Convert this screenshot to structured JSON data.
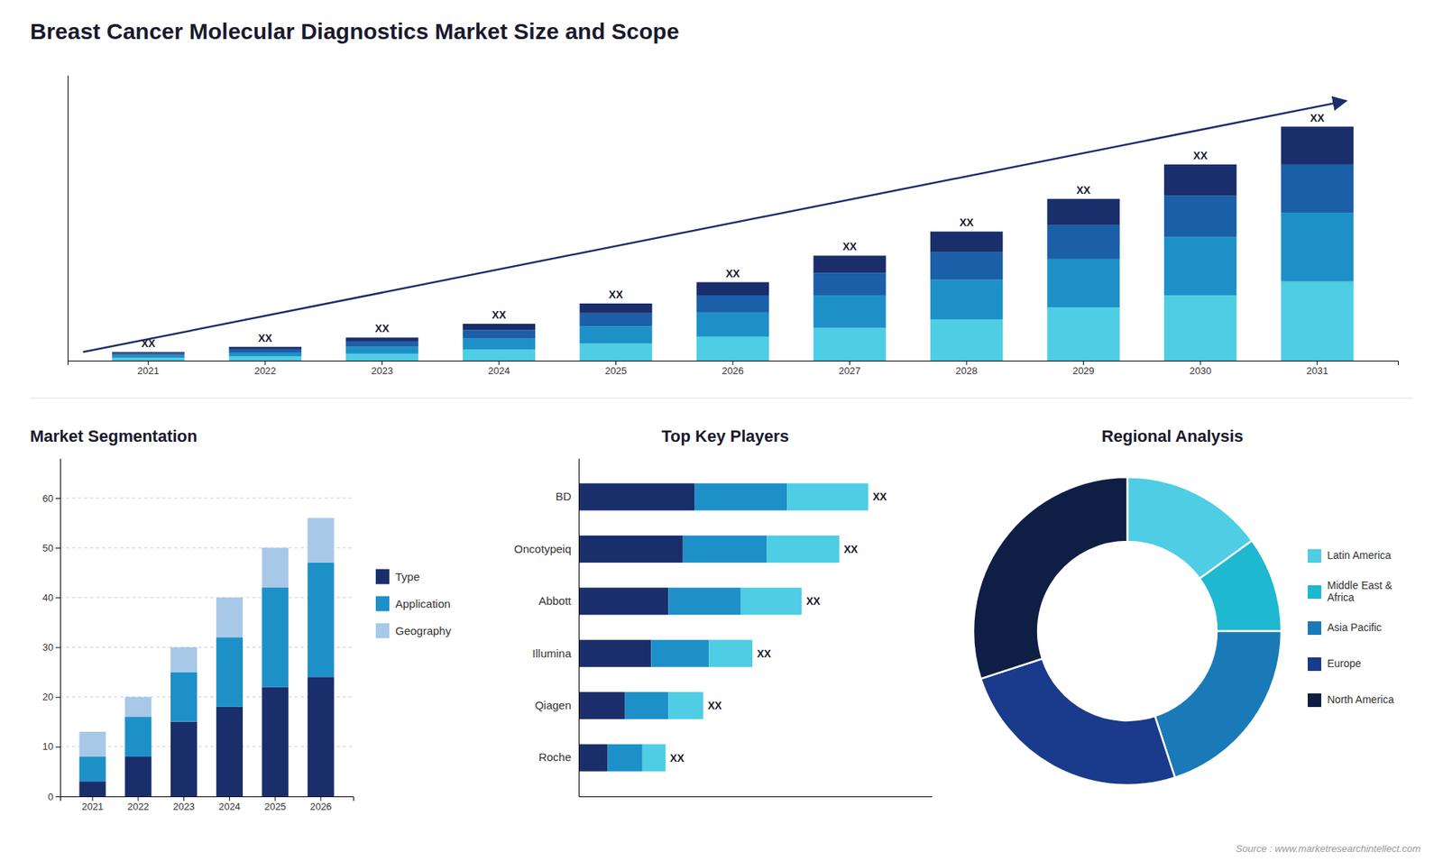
{
  "title": "Breast Cancer Molecular Diagnostics Market Size and Scope",
  "annotations": [
    "Source : www.marketresearchintellect.com"
  ],
  "chart_data": [
    {
      "type": "bar",
      "stacked": true,
      "tick_labels": "x",
      "categories": [
        "2021",
        "2022",
        "2023",
        "2024",
        "2025",
        "2026",
        "2027",
        "2028",
        "2029",
        "2030",
        "2031"
      ],
      "series": [
        {
          "color": "#4ecde4",
          "values": [
            0.8,
            1.2,
            2.0,
            3.2,
            5.0,
            7.0,
            9.5,
            12.0,
            15.5,
            19.0,
            23.0
          ]
        },
        {
          "color": "#1e90c8",
          "values": [
            0.8,
            1.2,
            2.0,
            3.2,
            5.0,
            7.0,
            9.5,
            11.5,
            14.0,
            17.0,
            20.0
          ]
        },
        {
          "color": "#1a5fa8",
          "values": [
            0.5,
            0.9,
            1.5,
            2.5,
            3.8,
            5.0,
            6.5,
            8.0,
            10.0,
            12.0,
            14.0
          ]
        },
        {
          "color": "#1a2e6b",
          "values": [
            0.4,
            0.7,
            1.2,
            1.8,
            2.8,
            3.8,
            5.0,
            6.0,
            7.5,
            9.0,
            11.0
          ]
        }
      ],
      "annotations": [
        "XX",
        "XX",
        "XX",
        "XX",
        "XX",
        "XX",
        "XX",
        "XX",
        "XX",
        "XX",
        "XX"
      ],
      "ylim": [
        0,
        82.96
      ]
    },
    {
      "type": "bar",
      "stacked": true,
      "title": "Market Segmentation",
      "categories": [
        "2021",
        "2022",
        "2023",
        "2024",
        "2025",
        "2026"
      ],
      "series": [
        {
          "name": "Type",
          "color": "#1a2e6b",
          "values": [
            3,
            8,
            15,
            18,
            22,
            24
          ]
        },
        {
          "name": "Application",
          "color": "#1e90c8",
          "values": [
            5,
            8,
            10,
            14,
            20,
            23
          ]
        },
        {
          "name": "Geography",
          "color": "#a8c8e8",
          "values": [
            5,
            4,
            5,
            8,
            8,
            9
          ]
        }
      ],
      "ylim": [
        0,
        68
      ],
      "yticks": [
        0,
        10,
        20,
        30,
        40,
        50,
        60
      ],
      "grid": true,
      "legend": "right"
    },
    {
      "type": "bar",
      "stacked": true,
      "orientation": "horizontal",
      "tick_labels": "y",
      "title": "Top Key Players",
      "categories": [
        "BD",
        "Oncotypeiq",
        "Abbott",
        "Illumina",
        "Qiagen",
        "Roche"
      ],
      "series": [
        {
          "color": "#1a2e6b",
          "values": [
            4.0,
            3.6,
            3.1,
            2.5,
            1.6,
            1.0
          ]
        },
        {
          "color": "#1e90c8",
          "values": [
            3.2,
            2.9,
            2.5,
            2.0,
            1.5,
            1.2
          ]
        },
        {
          "color": "#4ecde4",
          "values": [
            2.8,
            2.5,
            2.1,
            1.5,
            1.2,
            0.8
          ]
        }
      ],
      "annotations": [
        "XX",
        "XX",
        "XX",
        "XX",
        "XX",
        "XX"
      ],
      "xlim": [
        0,
        12.2
      ]
    },
    {
      "type": "pie",
      "title": "Regional Analysis",
      "categories": [
        "Latin America",
        "Middle East &\nAfrica",
        "Asia Pacific",
        "Europe",
        "North America"
      ],
      "values": [
        15,
        10,
        20,
        25,
        30
      ],
      "colors": [
        "#4ecde4",
        "#1eb8d0",
        "#1a7ab8",
        "#1a3a8b",
        "#0f1e45"
      ],
      "legend": "right"
    }
  ]
}
